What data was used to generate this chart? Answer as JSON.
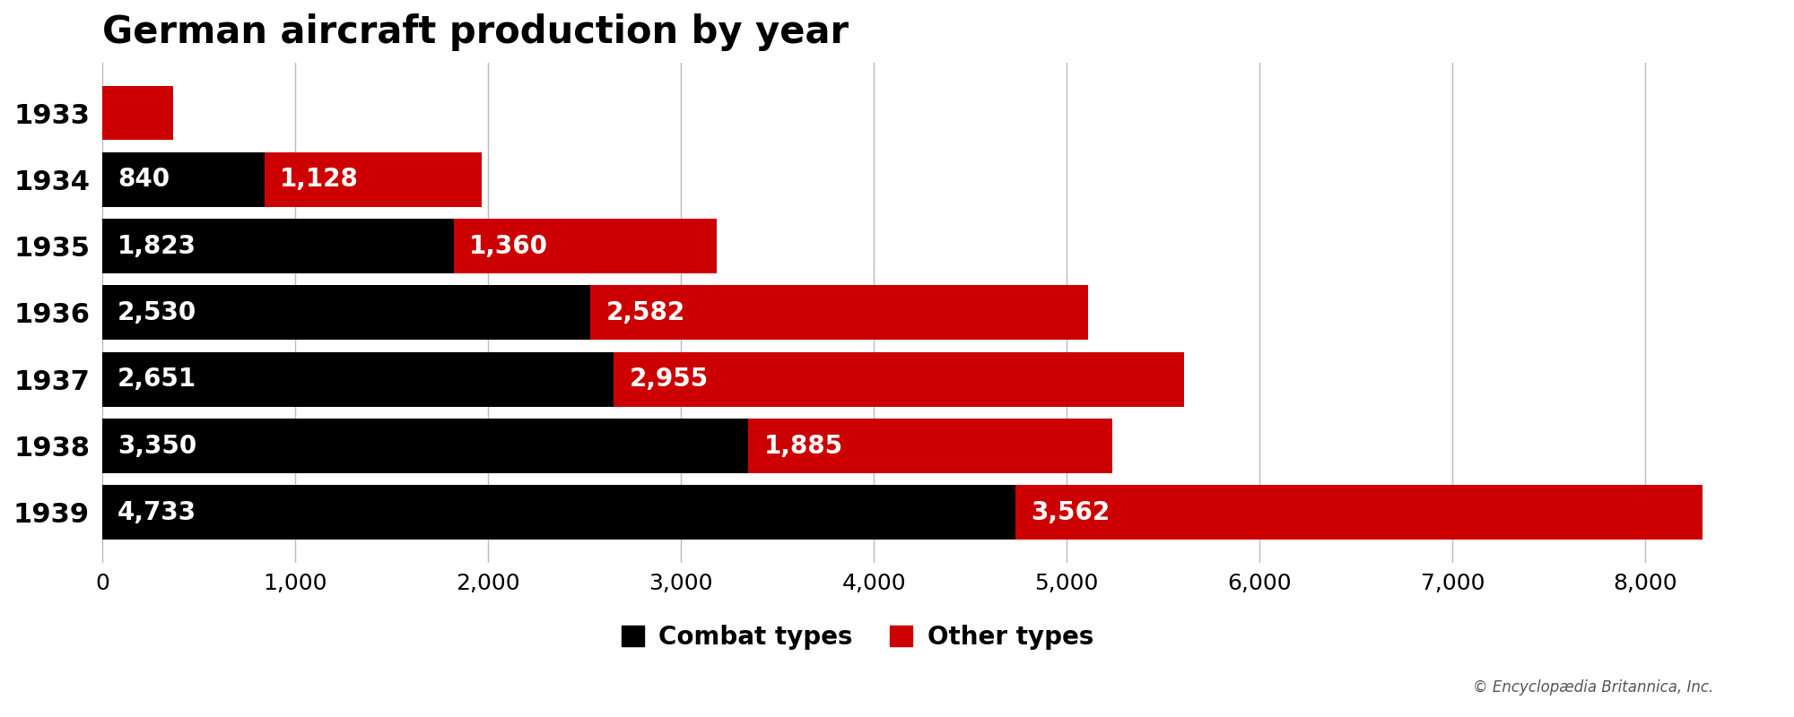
{
  "title": "German aircraft production by year",
  "years": [
    "1933",
    "1934",
    "1935",
    "1936",
    "1937",
    "1938",
    "1939"
  ],
  "combat": [
    0,
    840,
    1823,
    2530,
    2651,
    3350,
    4733
  ],
  "other": [
    368,
    1128,
    1360,
    2582,
    2955,
    1885,
    3562
  ],
  "show_combat_label": [
    false,
    true,
    true,
    true,
    true,
    true,
    true
  ],
  "show_other_label": [
    false,
    true,
    true,
    true,
    true,
    true,
    true
  ],
  "combat_color": "#000000",
  "other_color": "#cc0000",
  "background_color": "#ffffff",
  "title_fontsize": 30,
  "label_fontsize": 20,
  "tick_fontsize": 18,
  "legend_fontsize": 20,
  "xlim": [
    0,
    8700
  ],
  "xticks": [
    0,
    1000,
    2000,
    3000,
    4000,
    5000,
    6000,
    7000,
    8000
  ],
  "copyright": "© Encyclopædia Britannica, Inc.",
  "legend_combat": "Combat types",
  "legend_other": "Other types"
}
